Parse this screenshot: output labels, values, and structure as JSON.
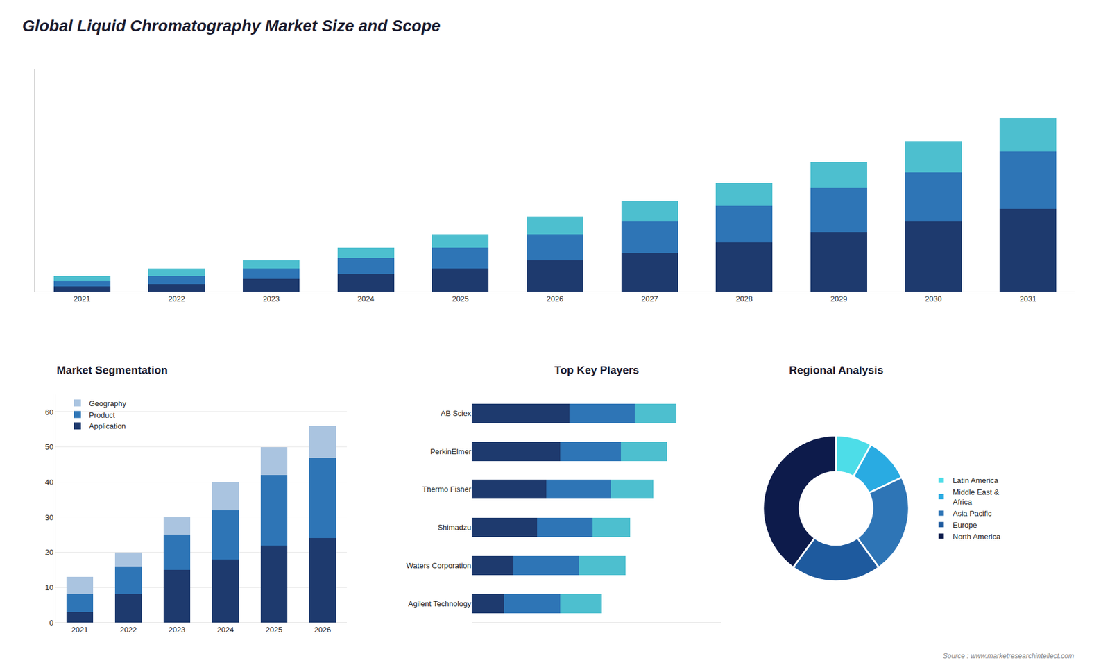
{
  "chart_data": [
    {
      "type": "bar",
      "title": "Global Liquid Chromatography Market Size and Scope",
      "categories": [
        "2021",
        "2022",
        "2023",
        "2024",
        "2025",
        "2026",
        "2027",
        "2028",
        "2029",
        "2030",
        "2031"
      ],
      "series": [
        {
          "color": "#1e3a6e",
          "values": [
            2,
            3,
            5,
            7,
            9,
            12,
            15,
            19,
            23,
            27,
            32
          ]
        },
        {
          "color": "#2e75b6",
          "values": [
            2,
            3,
            4,
            6,
            8,
            10,
            12,
            14,
            17,
            19,
            22
          ]
        },
        {
          "color": "#4dbfcf",
          "values": [
            2,
            3,
            3,
            4,
            5,
            7,
            8,
            9,
            10,
            12,
            13
          ]
        }
      ],
      "stacked": true,
      "ylim": [
        0,
        85.76
      ],
      "tick_labels": "x",
      "grid": false
    },
    {
      "type": "bar",
      "title": "Market Segmentation",
      "categories": [
        "2021",
        "2022",
        "2023",
        "2024",
        "2025",
        "2026"
      ],
      "series": [
        {
          "name": "Application",
          "color": "#1e3a6e",
          "values": [
            3,
            8,
            15,
            18,
            22,
            24
          ]
        },
        {
          "name": "Product",
          "color": "#2e75b6",
          "values": [
            5,
            8,
            10,
            14,
            20,
            23
          ]
        },
        {
          "name": "Geography",
          "color": "#aac4e0",
          "values": [
            5,
            4,
            5,
            8,
            8,
            9
          ]
        }
      ],
      "stacked": true,
      "ylim": [
        0,
        65
      ],
      "yticks": [
        0,
        10,
        20,
        30,
        40,
        50,
        60
      ],
      "grid": true,
      "legend": "upper left"
    },
    {
      "type": "bar",
      "title": "Top Key Players",
      "orientation": "horizontal",
      "categories": [
        "AB Sciex",
        "PerkinElmer",
        "Thermo Fisher",
        "Shimadzu",
        "Waters Corporation",
        "Agilent Technology"
      ],
      "series": [
        {
          "color": "#1e3a6e",
          "values": [
            42,
            38,
            32,
            28,
            18,
            14
          ]
        },
        {
          "color": "#2e75b6",
          "values": [
            28,
            26,
            28,
            24,
            28,
            24
          ]
        },
        {
          "color": "#4dbfcf",
          "values": [
            18,
            20,
            18,
            16,
            20,
            18
          ]
        }
      ],
      "stacked": true,
      "xlim": [
        0,
        107.36
      ],
      "tick_labels": "y",
      "grid": false
    },
    {
      "type": "pie",
      "title": "Regional Analysis",
      "categories": [
        "Latin America",
        "Middle East &\nAfrica",
        "Asia Pacific",
        "Europe",
        "North America"
      ],
      "values": [
        8,
        10,
        22,
        20,
        40
      ],
      "colors": [
        "#4ddde8",
        "#29abe2",
        "#2e75b6",
        "#1e5a9e",
        "#0d1b4b"
      ],
      "legend": "right",
      "annotations": [
        {
          "text": "Source : www.marketresearchintellect.com"
        }
      ]
    }
  ]
}
